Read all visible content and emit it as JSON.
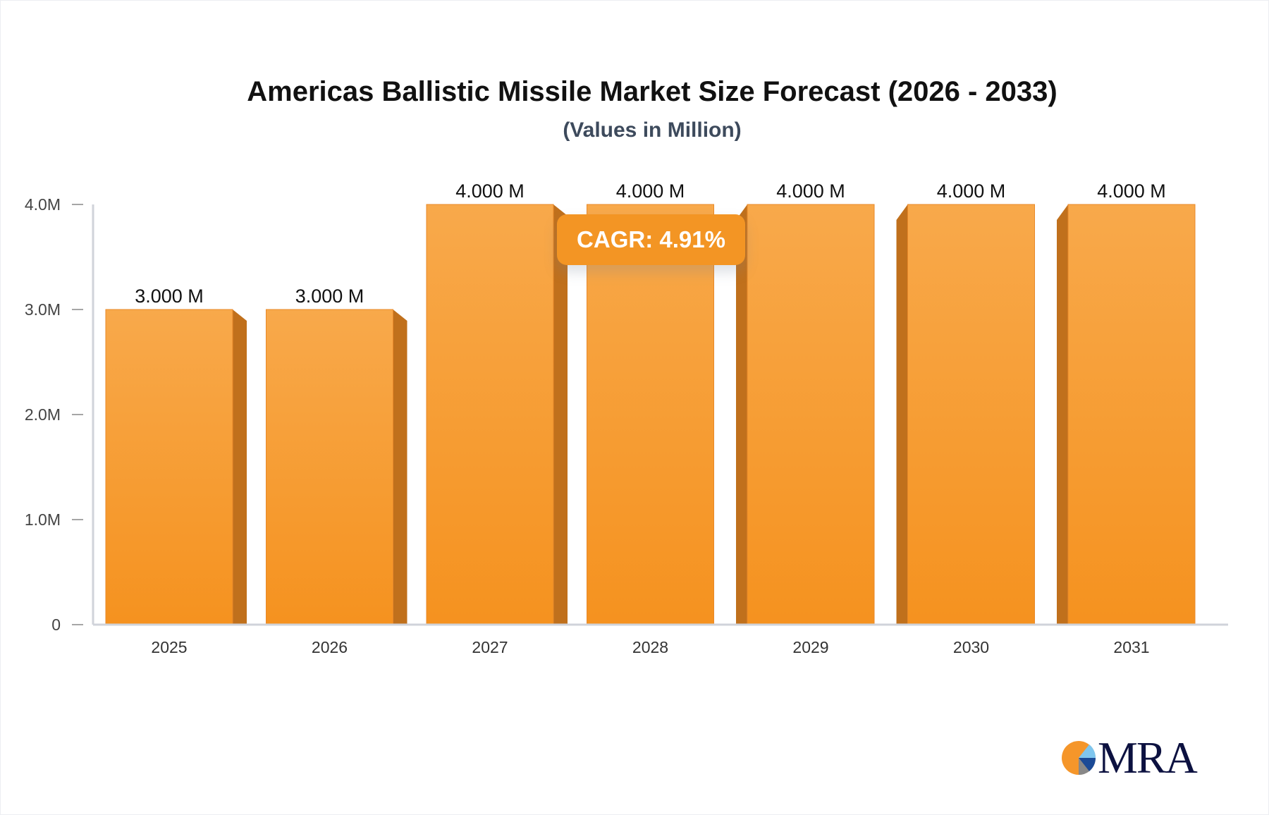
{
  "chart_data": {
    "type": "bar",
    "title": "Americas Ballistic Missile Market Size Forecast (2026 - 2033)",
    "subtitle": "(Values in Million)",
    "categories": [
      "2025",
      "2026",
      "2027",
      "2028",
      "2029",
      "2030",
      "2031"
    ],
    "values": [
      3.0,
      3.0,
      4.0,
      4.0,
      4.0,
      4.0,
      4.0
    ],
    "data_labels": [
      "3.000 M",
      "3.000 M",
      "4.000 M",
      "4.000 M",
      "4.000 M",
      "4.000 M",
      "4.000 M"
    ],
    "y_ticks": [
      0,
      1,
      2,
      3,
      4
    ],
    "y_tick_labels": [
      "0",
      "1.0M",
      "2.0M",
      "3.0M",
      "4.0M"
    ],
    "ylim": [
      0,
      4
    ],
    "xlabel": "",
    "ylabel": "",
    "grid": false,
    "bar_color": "#f5962a",
    "annotation": "CAGR: 4.91%"
  },
  "logo": {
    "text": "MRA"
  }
}
